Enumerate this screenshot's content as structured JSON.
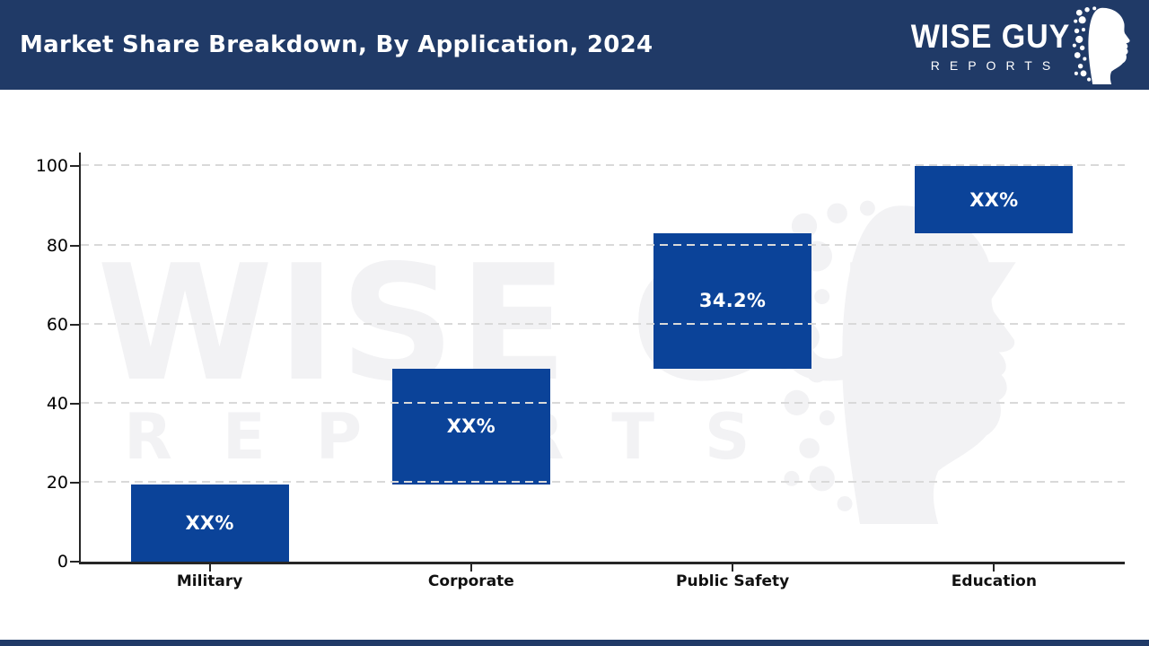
{
  "header": {
    "title": "Market Share Breakdown, By Application, 2024",
    "logo": {
      "line1": "WISE GUY",
      "line2": "REPORTS"
    }
  },
  "watermark": {
    "line1": "WISE GUY",
    "line2": "REPORTS"
  },
  "colors": {
    "header_background": "#203a67",
    "bar": "#0b4399",
    "watermark": "#f2f2f4",
    "gridline": "#d9d9d9",
    "axis": "#262626",
    "bar_label_text": "#ffffff",
    "title_text": "#ffffff"
  },
  "chart_data": {
    "type": "bar",
    "subtype": "waterfall",
    "title": "Market Share Breakdown, By Application, 2024",
    "categories": [
      "Military",
      "Corporate",
      "Public Safety",
      "Education"
    ],
    "segments": [
      {
        "category": "Military",
        "start": 0,
        "end": 19.5,
        "label": "XX%"
      },
      {
        "category": "Corporate",
        "start": 19.5,
        "end": 48.9,
        "label": "XX%"
      },
      {
        "category": "Public Safety",
        "start": 48.9,
        "end": 83.1,
        "label": "34.2%"
      },
      {
        "category": "Education",
        "start": 83.1,
        "end": 100,
        "label": "XX%"
      }
    ],
    "yticks": [
      0,
      20,
      40,
      60,
      80,
      100
    ],
    "ylim": [
      0,
      103.5
    ],
    "xlabel": "",
    "ylabel": "",
    "grid": "horizontal-dashed",
    "grid_above_bars": true,
    "legend": "none",
    "bar_color": "#0b4399"
  }
}
